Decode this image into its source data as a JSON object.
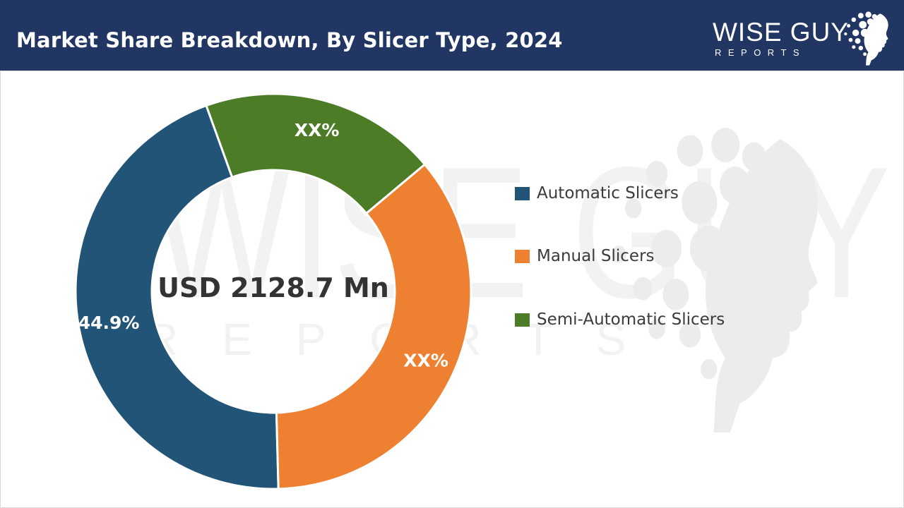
{
  "header": {
    "title": "Market Share Breakdown, By Slicer Type, 2024",
    "logo": {
      "name": "WISE GUY",
      "tagline": "REPORTS"
    }
  },
  "chart_data": {
    "type": "pie",
    "subtype": "donut",
    "title": "Market Share Breakdown, By Slicer Type, 2024",
    "center_label": "USD 2128.7 Mn",
    "legend_position": "right",
    "start_angle_deg": 40,
    "direction": "counterclockwise",
    "draw_order": [
      2,
      0,
      1
    ],
    "slices": [
      {
        "label": "Automatic Slicers",
        "value": 44.9,
        "display_label": "44.9%",
        "color": "#215477"
      },
      {
        "label": "Manual Slicers",
        "value": 35.7,
        "display_label": "XX%",
        "color": "#ee8032"
      },
      {
        "label": "Semi-Automatic Slicers",
        "value": 19.4,
        "display_label": "XX%",
        "color": "#4d7c26"
      }
    ]
  },
  "watermark": {
    "text_line1": "WISE GUY",
    "text_line2": "REPORTS"
  },
  "colors": {
    "header_navy": "#223663",
    "border_gray": "#d9d9d9",
    "center_text": "#333333",
    "legend_text": "#3b3b3b",
    "watermark_gray": "#f2f2f2",
    "label_white": "#ffffff"
  }
}
